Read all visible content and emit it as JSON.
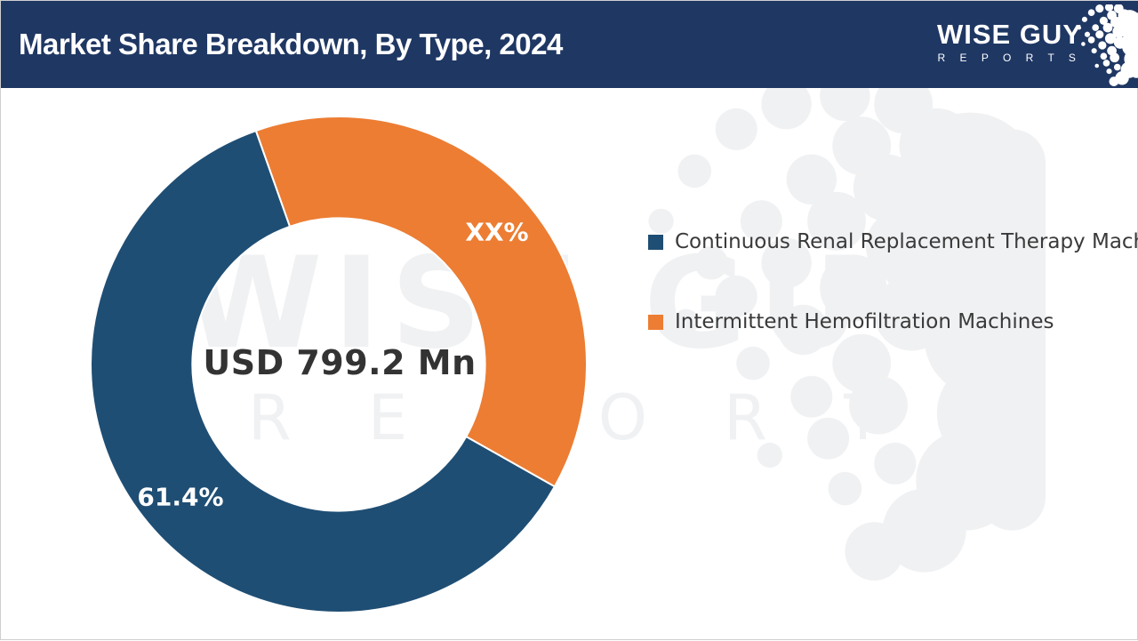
{
  "header": {
    "title": "Market Share Breakdown, By Type, 2024",
    "logo": {
      "line1": "WISE GUY",
      "line2": "R E P O R T S"
    }
  },
  "chart_data": {
    "type": "pie",
    "title": "Market Share Breakdown, By Type, 2024",
    "center_label": "USD 799.2 Mn",
    "donut_hole_ratio": 0.59,
    "start_angle_deg": 109.5,
    "counterclockwise": true,
    "legend_position": "right",
    "series": [
      {
        "name": "Continuous Renal Replacement Therapy Machines",
        "value": 61.4,
        "label": "61.4%",
        "color": "#1f4e74"
      },
      {
        "name": "Intermittent Hemofiltration Machines",
        "value": 38.6,
        "label": "XX%",
        "color": "#ec7d33"
      }
    ]
  },
  "watermark": {
    "line1": "WISE GUY",
    "line2": "R E P O R T S"
  },
  "colors": {
    "header_bg": "#1f3763",
    "slice_blue": "#1f4e74",
    "slice_orange": "#ec7d33",
    "center_text": "#333333",
    "legend_text": "#3a3a3a",
    "border": "#cfcfcf"
  }
}
